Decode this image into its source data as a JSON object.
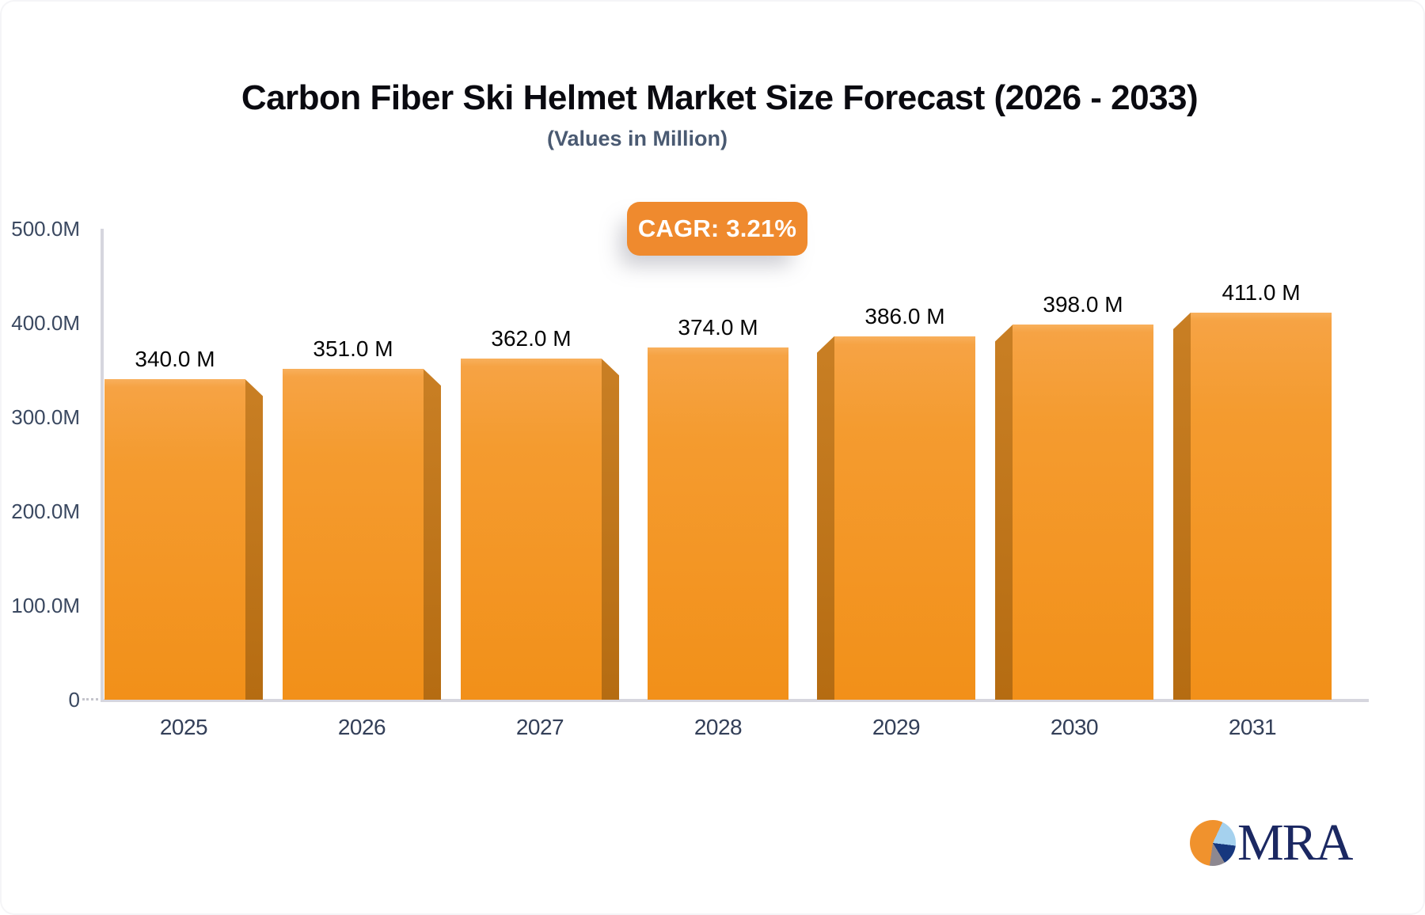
{
  "title": "Carbon Fiber Ski Helmet Market Size Forecast (2026 - 2033)",
  "subtitle": "(Values in Million)",
  "badge": {
    "label": "CAGR: 3.21%"
  },
  "chart_data": {
    "type": "bar",
    "title": "Carbon Fiber Ski Helmet Market Size Forecast (2026 - 2033)",
    "subtitle": "(Values in Million)",
    "cagr": "3.21%",
    "categories": [
      "2025",
      "2026",
      "2027",
      "2028",
      "2029",
      "2030",
      "2031"
    ],
    "values": [
      340,
      351,
      362,
      374,
      386,
      398,
      411
    ],
    "value_labels": [
      "340.0 M",
      "351.0 M",
      "362.0 M",
      "374.0 M",
      "386.0 M",
      "398.0 M",
      "411.0 M"
    ],
    "unit": "Million",
    "ylim": [
      0,
      500
    ],
    "yticks": [
      500,
      400,
      300,
      200,
      100,
      0
    ],
    "ytick_labels": [
      "500.0M",
      "400.0M",
      "300.0M",
      "200.0M",
      "100.0M",
      "0"
    ],
    "grid": false,
    "legend": "none",
    "bar_color": "#f49b2f",
    "bar_side_color": "#b56c12",
    "bar_top_color": "#f8b05c",
    "axis_line_color": "#d6d6de",
    "axis_text_color": "#3a4860"
  },
  "colors": {
    "accent_orange": "#ef8a2e",
    "title_text": "#0a0a10",
    "subtitle_text": "#4a5a72",
    "logo_navy": "#1b2862"
  },
  "logo": {
    "text": "MRA",
    "pie_colors": [
      "#f0922d",
      "#a5d1ee",
      "#16377e",
      "#8d8890"
    ]
  }
}
